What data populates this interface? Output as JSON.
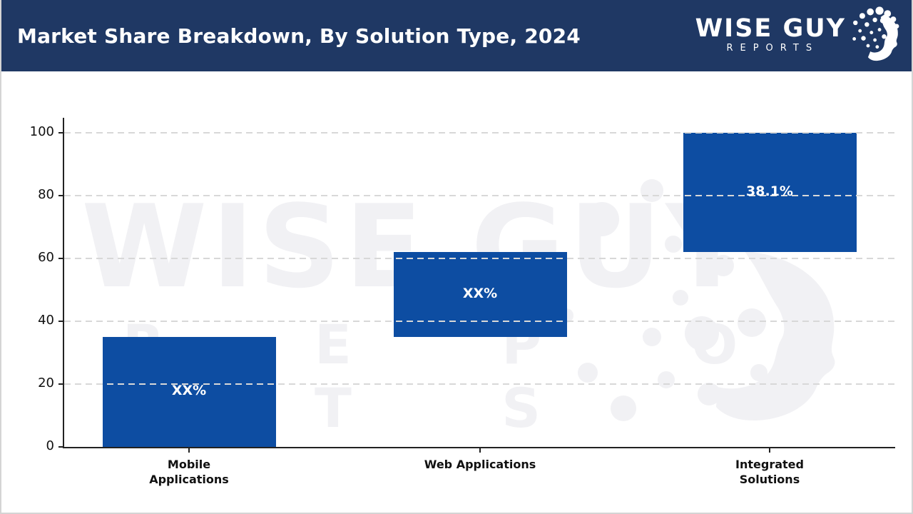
{
  "header": {
    "title": "Market Share Breakdown, By Solution Type, 2024",
    "bg_color": "#1F3864",
    "logo": {
      "line1": "WISE GUY",
      "line2": "REPORTS"
    }
  },
  "watermark": {
    "line1": "WISE GUY",
    "line2": "REPORTS"
  },
  "chart_data": {
    "type": "bar",
    "subtype": "floating-segment-waterfall",
    "title": "Market Share Breakdown, By Solution Type, 2024",
    "categories": [
      "Mobile Applications",
      "Web Applications",
      "Integrated Solutions"
    ],
    "bars": [
      {
        "category": "Mobile Applications",
        "category_lines": [
          "Mobile",
          "Applications"
        ],
        "start": 0,
        "end": 35,
        "label": "XX%"
      },
      {
        "category": "Web Applications",
        "category_lines": [
          "Web Applications"
        ],
        "start": 35,
        "end": 62,
        "label": "XX%"
      },
      {
        "category": "Integrated Solutions",
        "category_lines": [
          "Integrated",
          "Solutions"
        ],
        "start": 62,
        "end": 100,
        "label": "38.1%"
      }
    ],
    "xlabel": "",
    "ylabel": "",
    "ylim": [
      0,
      100
    ],
    "yticks": [
      0,
      20,
      40,
      60,
      80,
      100
    ],
    "grid": "horizontal-dashed",
    "legend": "none",
    "bar_color": "#0D4DA2",
    "gridline_color": "#d8d8d8",
    "axis_color": "#222222"
  }
}
